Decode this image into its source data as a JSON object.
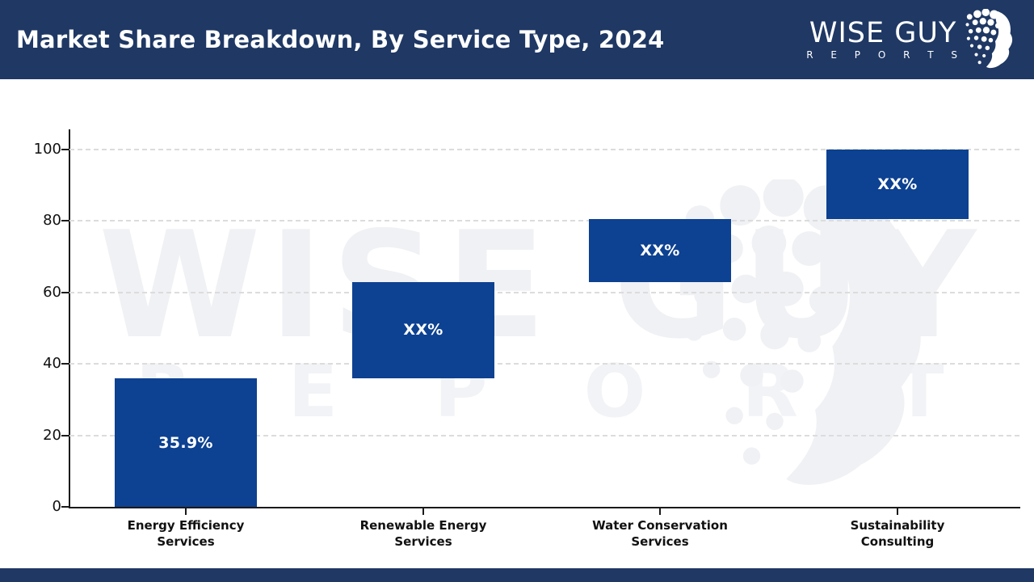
{
  "header": {
    "title": "Market Share Breakdown, By Service Type, 2024"
  },
  "logo": {
    "name_top": "WISE GUY",
    "name_bottom": "R E P O R T S"
  },
  "watermark": {
    "line1": "WISE GUY",
    "line2": "R E P O R T S"
  },
  "colors": {
    "header_bg": "#1f3864",
    "footer_bg": "#1f3864",
    "bar": "#0d4191",
    "bar_label": "#ffffff",
    "grid": "#dcdcdc",
    "axis": "#1a1a1a",
    "watermark": "#f0f1f4"
  },
  "chart_data": {
    "type": "bar",
    "subtype": "waterfall",
    "title": "Market Share Breakdown, By Service Type, 2024",
    "xlabel": "",
    "ylabel": "",
    "ylim": [
      0,
      100
    ],
    "yticks": [
      0,
      20,
      40,
      60,
      80,
      100
    ],
    "grid": "horizontal-dashed",
    "legend": "none",
    "categories": [
      "Energy Efficiency\nServices",
      "Renewable Energy\nServices",
      "Water Conservation\nServices",
      "Sustainability\nConsulting"
    ],
    "segments": [
      {
        "category": "Energy Efficiency Services",
        "start": 0,
        "end": 35.9,
        "label": "35.9%"
      },
      {
        "category": "Renewable Energy Services",
        "start": 35.9,
        "end": 63.0,
        "label": "XX%"
      },
      {
        "category": "Water Conservation Services",
        "start": 63.0,
        "end": 80.6,
        "label": "XX%"
      },
      {
        "category": "Sustainability Consulting",
        "start": 80.6,
        "end": 100,
        "label": "XX%"
      }
    ]
  }
}
